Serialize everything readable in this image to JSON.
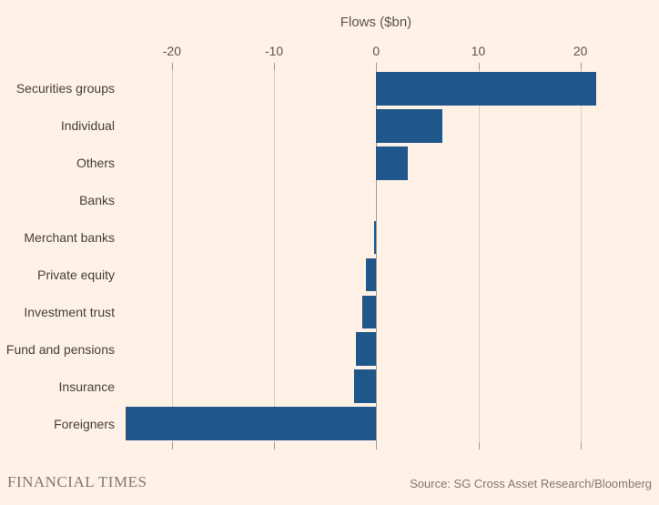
{
  "background_color": "#FFF1E5",
  "chart_data": {
    "type": "bar",
    "orientation": "horizontal",
    "title": "Flows ($bn)",
    "categories": [
      "Securities groups",
      "Individual",
      "Others",
      "Banks",
      "Merchant banks",
      "Private equity",
      "Investment trust",
      "Fund and pensions",
      "Insurance",
      "Foreigners"
    ],
    "values": [
      21.5,
      6.5,
      3.1,
      0,
      -0.2,
      -1.0,
      -1.4,
      -2.0,
      -2.2,
      -24.5
    ],
    "x_ticks": [
      "-20",
      "-10",
      "0",
      "10",
      "20"
    ],
    "x_tick_values": [
      -20,
      -10,
      0,
      10,
      20
    ],
    "xlim": [
      -24.8,
      21.8
    ],
    "grid": true,
    "legend": "none",
    "bar_color": "#20578B",
    "gridline_color": "#d7cdc2",
    "zero_line_color": "#a39b92"
  },
  "footer": {
    "brand": "FINANCIAL TIMES",
    "source": "Source: SG Cross Asset Research/Bloomberg"
  }
}
